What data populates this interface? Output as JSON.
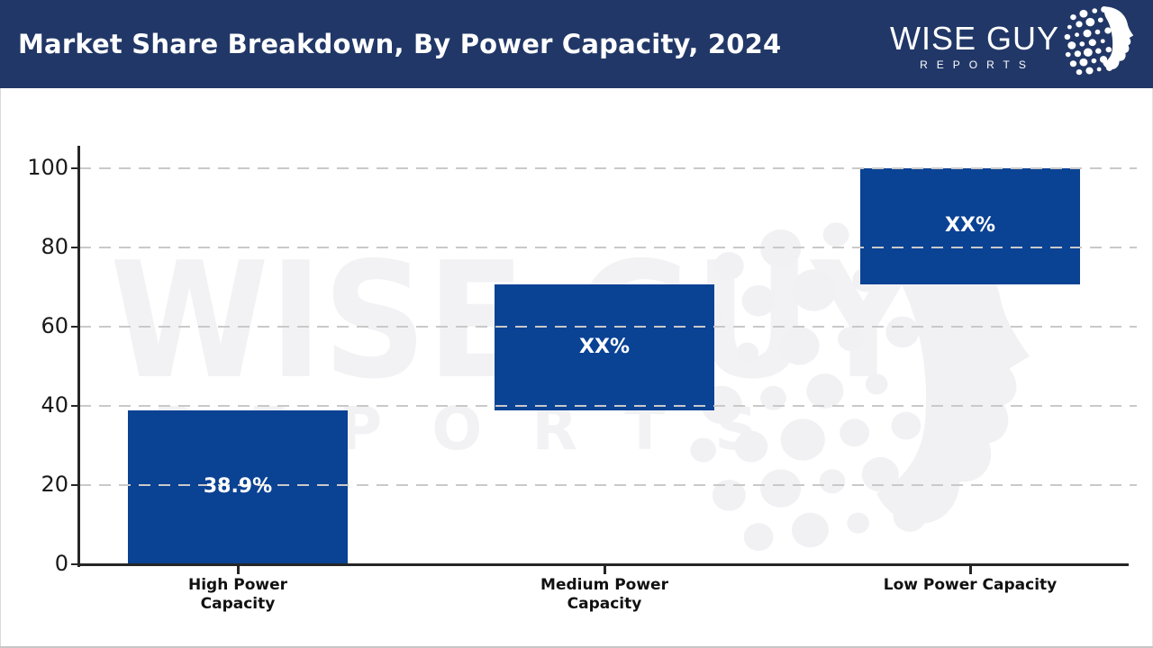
{
  "header": {
    "title": "Market Share Breakdown, By Power Capacity, 2024",
    "logo": {
      "line1": "WISE GUY",
      "line2": "REPORTS"
    }
  },
  "watermark": {
    "line1": "WISE GUY",
    "line2": "REPORTS"
  },
  "colors": {
    "header_bg": "#213767",
    "bar": "#0a4294",
    "axis": "#262626",
    "grid": "#c9c9c9",
    "bar_label_text": "#ffffff",
    "tick_text": "#1a1a1a",
    "watermark": "#f2f2f4"
  },
  "chart_data": {
    "type": "bar",
    "subtype": "waterfall-stacked-segments",
    "title": "Market Share Breakdown, By Power Capacity, 2024",
    "categories": [
      "High Power Capacity",
      "Medium Power Capacity",
      "Low Power Capacity"
    ],
    "category_label_lines": [
      [
        "High Power",
        "Capacity"
      ],
      [
        "Medium Power",
        "Capacity"
      ],
      [
        "Low Power Capacity"
      ]
    ],
    "segments": [
      {
        "category": "High Power Capacity",
        "label": "38.9%",
        "value": 38.9,
        "start": 0,
        "end": 38.9
      },
      {
        "category": "Medium Power Capacity",
        "label": "XX%",
        "value": null,
        "start": 38.9,
        "end": 70.7
      },
      {
        "category": "Low Power Capacity",
        "label": "XX%",
        "value": null,
        "start": 70.7,
        "end": 100
      }
    ],
    "yticks": [
      0,
      20,
      40,
      60,
      80,
      100
    ],
    "ylim": [
      0,
      100
    ],
    "xlabel": "",
    "ylabel": "",
    "grid": {
      "horizontal": true,
      "style": "dashed",
      "over_bars": true
    },
    "legend": null,
    "bar_color": "#0a4294"
  }
}
